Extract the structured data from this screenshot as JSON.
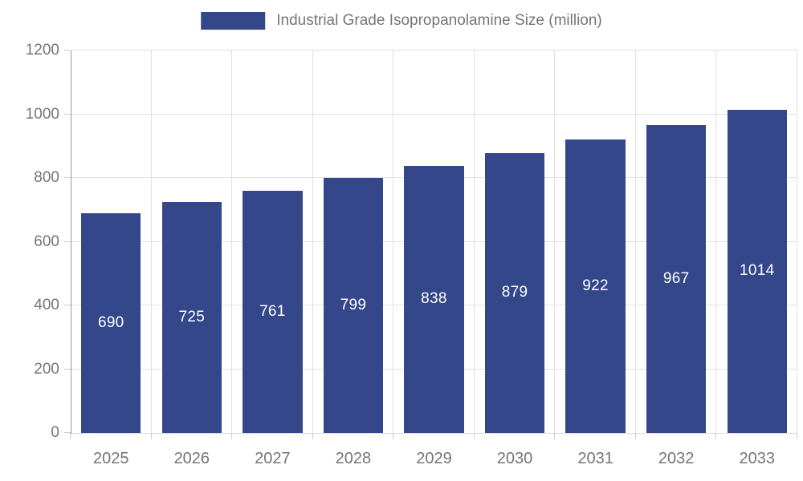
{
  "legend": {
    "label": "Industrial Grade Isopropanolamine Size (million)"
  },
  "colors": {
    "bar": "#35478B",
    "grid": "#e0e0e0",
    "axis_line": "#999999",
    "tick": "#cccccc",
    "text": "#757575",
    "bar_label": "#ffffff",
    "background": "#ffffff"
  },
  "chart_data": {
    "type": "bar",
    "title": "Industrial Grade Isopropanolamine Size (million)",
    "categories": [
      "2025",
      "2026",
      "2027",
      "2028",
      "2029",
      "2030",
      "2031",
      "2032",
      "2033"
    ],
    "values": [
      690,
      725,
      761,
      799,
      838,
      879,
      922,
      967,
      1014
    ],
    "xlabel": "",
    "ylabel": "",
    "ylim": [
      0,
      1200
    ],
    "yticks": [
      0,
      200,
      400,
      600,
      800,
      1000,
      1200
    ],
    "grid": true,
    "legend_position": "top-center",
    "bar_labels": "centered-white"
  }
}
